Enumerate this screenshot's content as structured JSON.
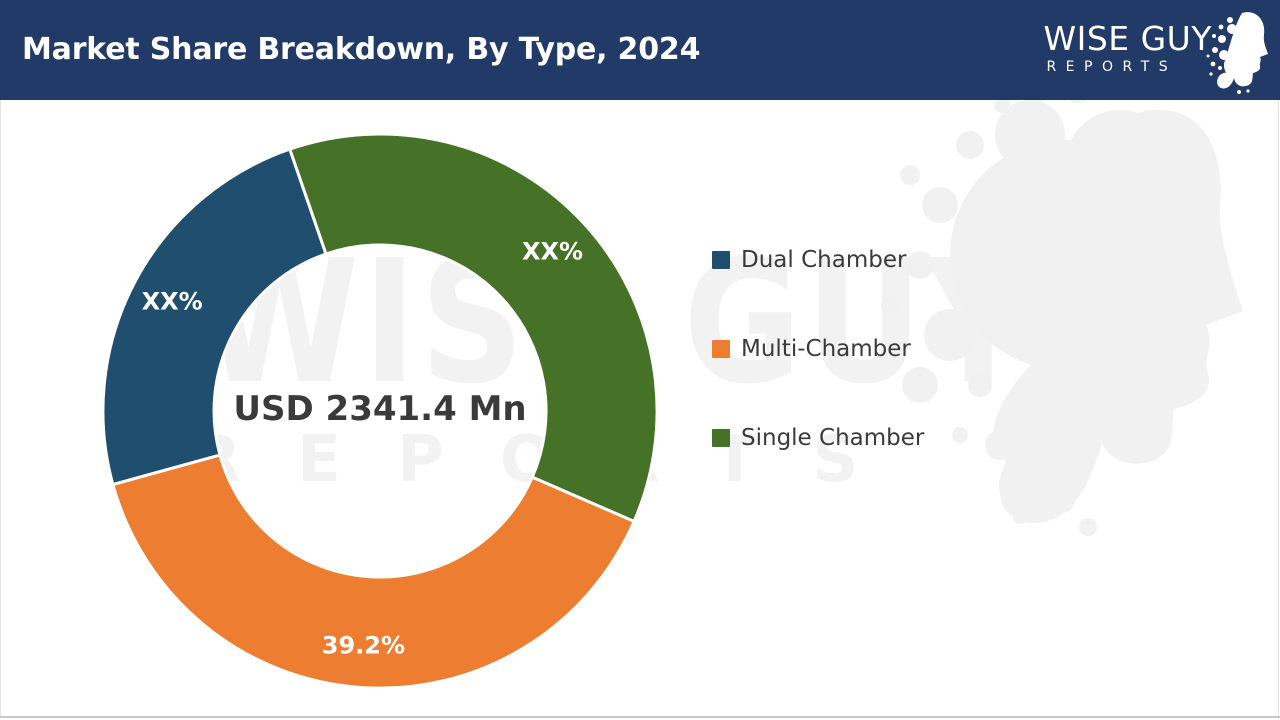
{
  "header": {
    "title": "Market Share Breakdown, By Type, 2024",
    "logo": {
      "line1": "WISE GUY",
      "line2": "REPORTS"
    }
  },
  "watermark": {
    "line1": "WISE GUY",
    "line2": "REPORTS"
  },
  "colors": {
    "header_bg": "#223a67",
    "dual_chamber": "#1f4e6e",
    "multi_chamber": "#ed7d31",
    "single_chamber": "#457227",
    "center_text": "#3a3a3a",
    "watermark": "#f2f2f2",
    "segment_label_text": "#ffffff"
  },
  "chart_data": {
    "type": "pie",
    "subtype": "donut",
    "title": "Market Share Breakdown, By Type, 2024",
    "center_label": "USD 2341.4 Mn",
    "legend_position": "right",
    "start_angle_deg": 109,
    "direction": "counterclockwise",
    "hole_ratio": 0.6,
    "segments": [
      {
        "label": "Dual Chamber",
        "display": "XX%",
        "arc_pct": 24.0,
        "color": "#1f4e6e"
      },
      {
        "label": "Multi-Chamber",
        "display": "39.2%",
        "arc_pct": 39.2,
        "color": "#ed7d31"
      },
      {
        "label": "Single Chamber",
        "display": "XX%",
        "arc_pct": 36.8,
        "color": "#457227"
      }
    ]
  }
}
